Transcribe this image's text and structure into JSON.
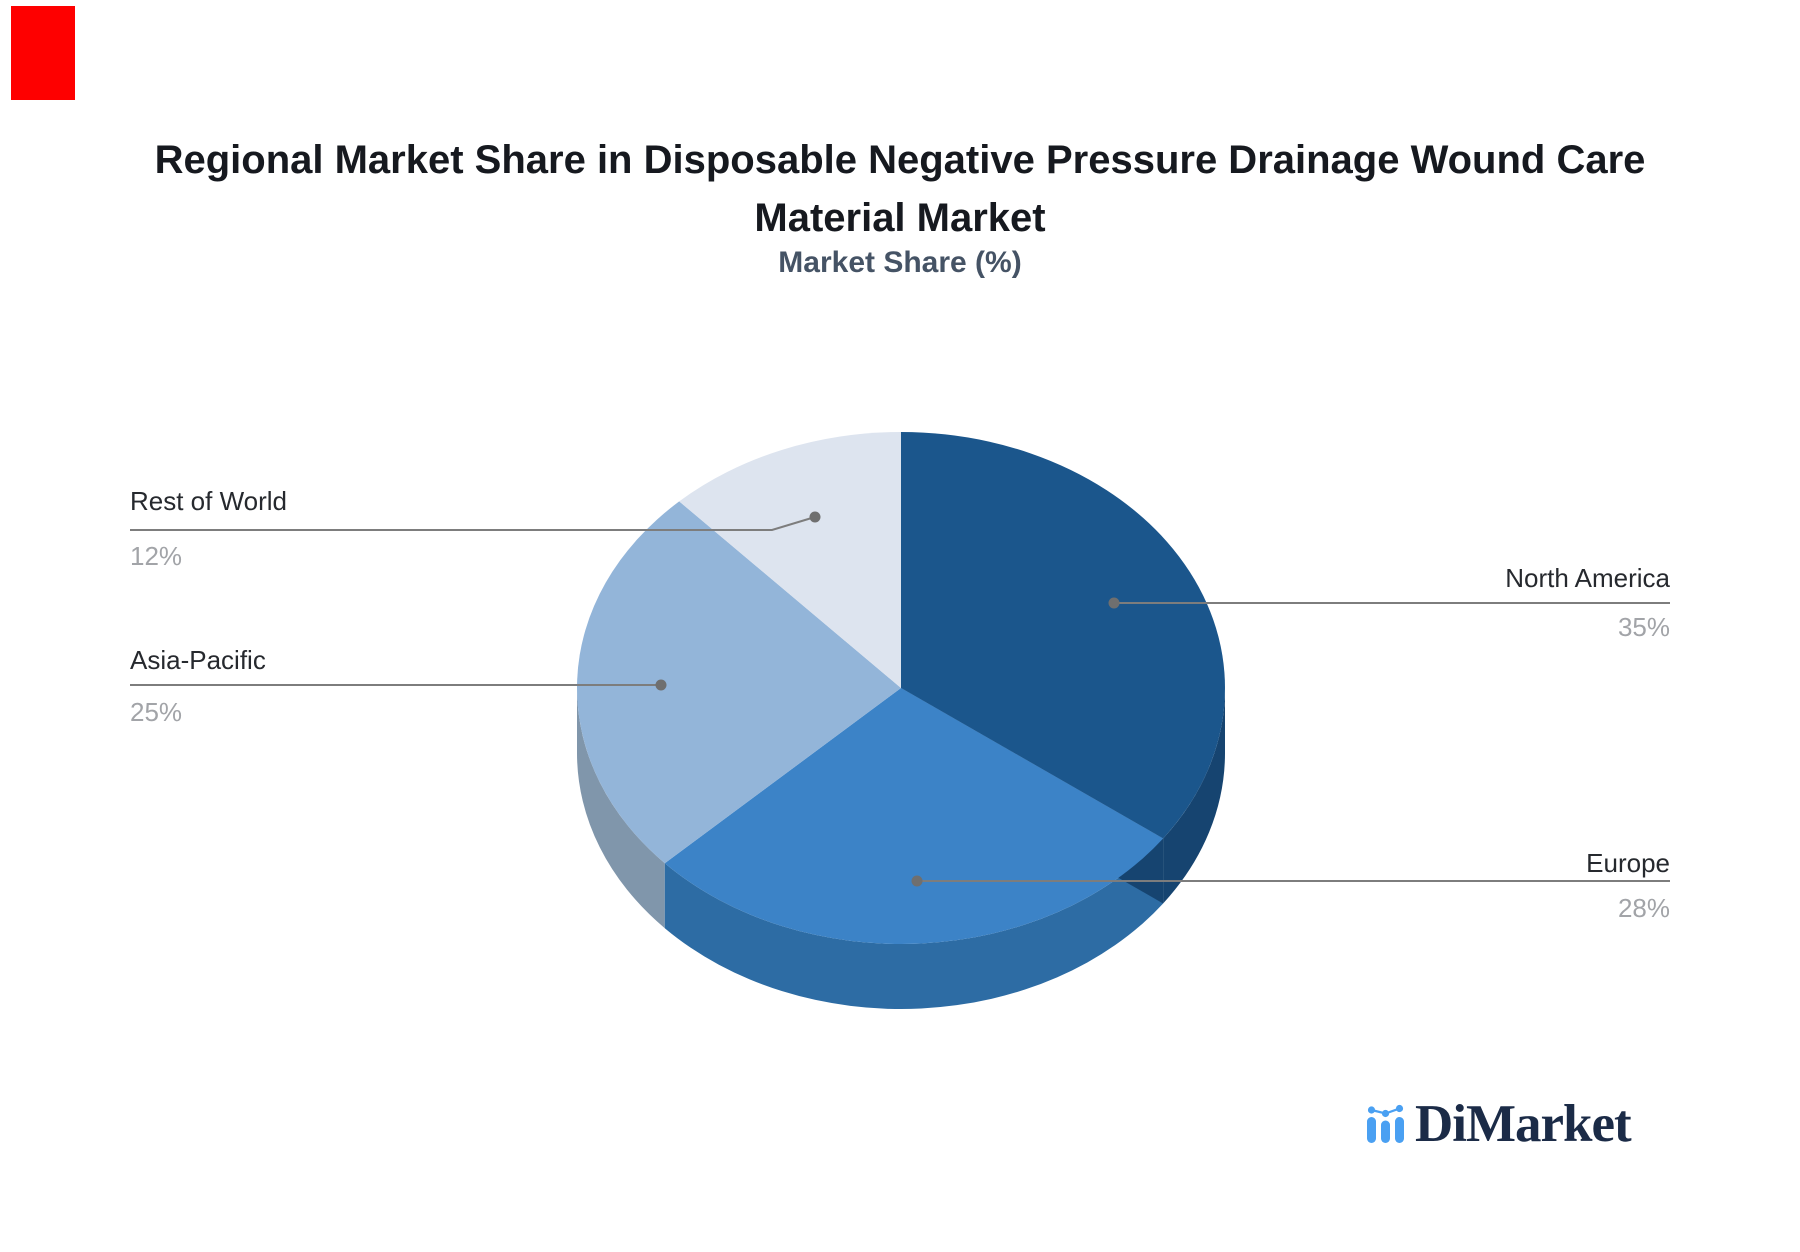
{
  "corner_marker": {
    "color": "#FE0000"
  },
  "header": {
    "title_line1": "Regional Market Share in Disposable Negative Pressure Drainage Wound Care",
    "title_line2": "Material Market",
    "subtitle": "Market Share (%)"
  },
  "chart_data": {
    "type": "pie",
    "title": "Regional Market Share in Disposable Negative Pressure Drainage Wound Care Material Market",
    "subtitle": "Market Share (%)",
    "unit": "%",
    "effect": "3d",
    "start_angle_deg": 0,
    "direction": "clockwise",
    "labels_outside": true,
    "legend": "none",
    "categories": [
      "North America",
      "Europe",
      "Asia-Pacific",
      "Rest of World"
    ],
    "values": [
      35,
      28,
      25,
      12
    ],
    "slices": [
      {
        "label": "North America",
        "value": 35,
        "display": "35%",
        "color": "#1B568C",
        "side_color": "#164470"
      },
      {
        "label": "Europe",
        "value": 28,
        "display": "28%",
        "color": "#3C83C7",
        "side_color": "#2D6CA4"
      },
      {
        "label": "Asia-Pacific",
        "value": 25,
        "display": "25%",
        "color": "#93B5D9",
        "side_color": "#8096AB"
      },
      {
        "label": "Rest of World",
        "value": 12,
        "display": "12%",
        "color": "#DDE4EF",
        "side_color": "#C6CFDC"
      }
    ]
  },
  "branding": {
    "logo_text": "DiMarket",
    "logo_icon": "bar-chart-icon"
  },
  "colors": {
    "title_text": "#16191F",
    "subtitle_text": "#455365",
    "label_name_text": "#26292E",
    "label_pct_text": "#A2A4A8",
    "leader_line": "#7D7D7D",
    "leader_dot": "#6F6F6F",
    "logo_text": "#1B2B47",
    "logo_icon_blue": "#4AA0F2",
    "background": "#FFFFFF"
  }
}
